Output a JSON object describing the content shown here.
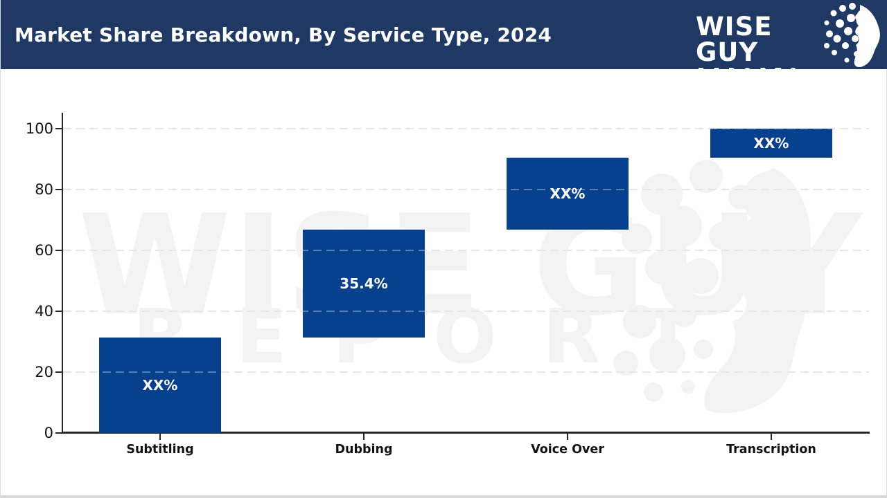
{
  "header": {
    "title": "Market Share Breakdown, By Service Type, 2024",
    "logo": {
      "line1": "WISE GUY",
      "line2": "REPORTS"
    }
  },
  "watermark": {
    "line1": "WISE GUY",
    "line2": "REPORTS"
  },
  "colors": {
    "header_bg": "#1f3864",
    "bar_blue": "#07418d",
    "gridline": "#d9d9d9",
    "axis": "#262626",
    "tick_text": "#111111",
    "bar_label_text": "#ffffff",
    "watermark": "#f3f3f3"
  },
  "chart_data": {
    "type": "bar",
    "variant": "stacked-waterfall",
    "title": "Market Share Breakdown, By Service Type, 2024",
    "xlabel": "",
    "ylabel": "",
    "categories": [
      "Subtitling",
      "Dubbing",
      "Voice Over",
      "Transcription"
    ],
    "bars": [
      {
        "category": "Subtitling",
        "start": 0,
        "end": 31.4,
        "value": 31.4,
        "label": "XX%"
      },
      {
        "category": "Dubbing",
        "start": 31.4,
        "end": 66.8,
        "value": 35.4,
        "label": "35.4%"
      },
      {
        "category": "Voice Over",
        "start": 66.8,
        "end": 90.5,
        "value": 23.7,
        "label": "XX%"
      },
      {
        "category": "Transcription",
        "start": 90.5,
        "end": 100,
        "value": 9.5,
        "label": "XX%"
      }
    ],
    "yticks": [
      0,
      20,
      40,
      60,
      80,
      100
    ],
    "ylim": [
      0,
      105
    ],
    "grid": "dashed-horizontal",
    "legend": "none"
  }
}
